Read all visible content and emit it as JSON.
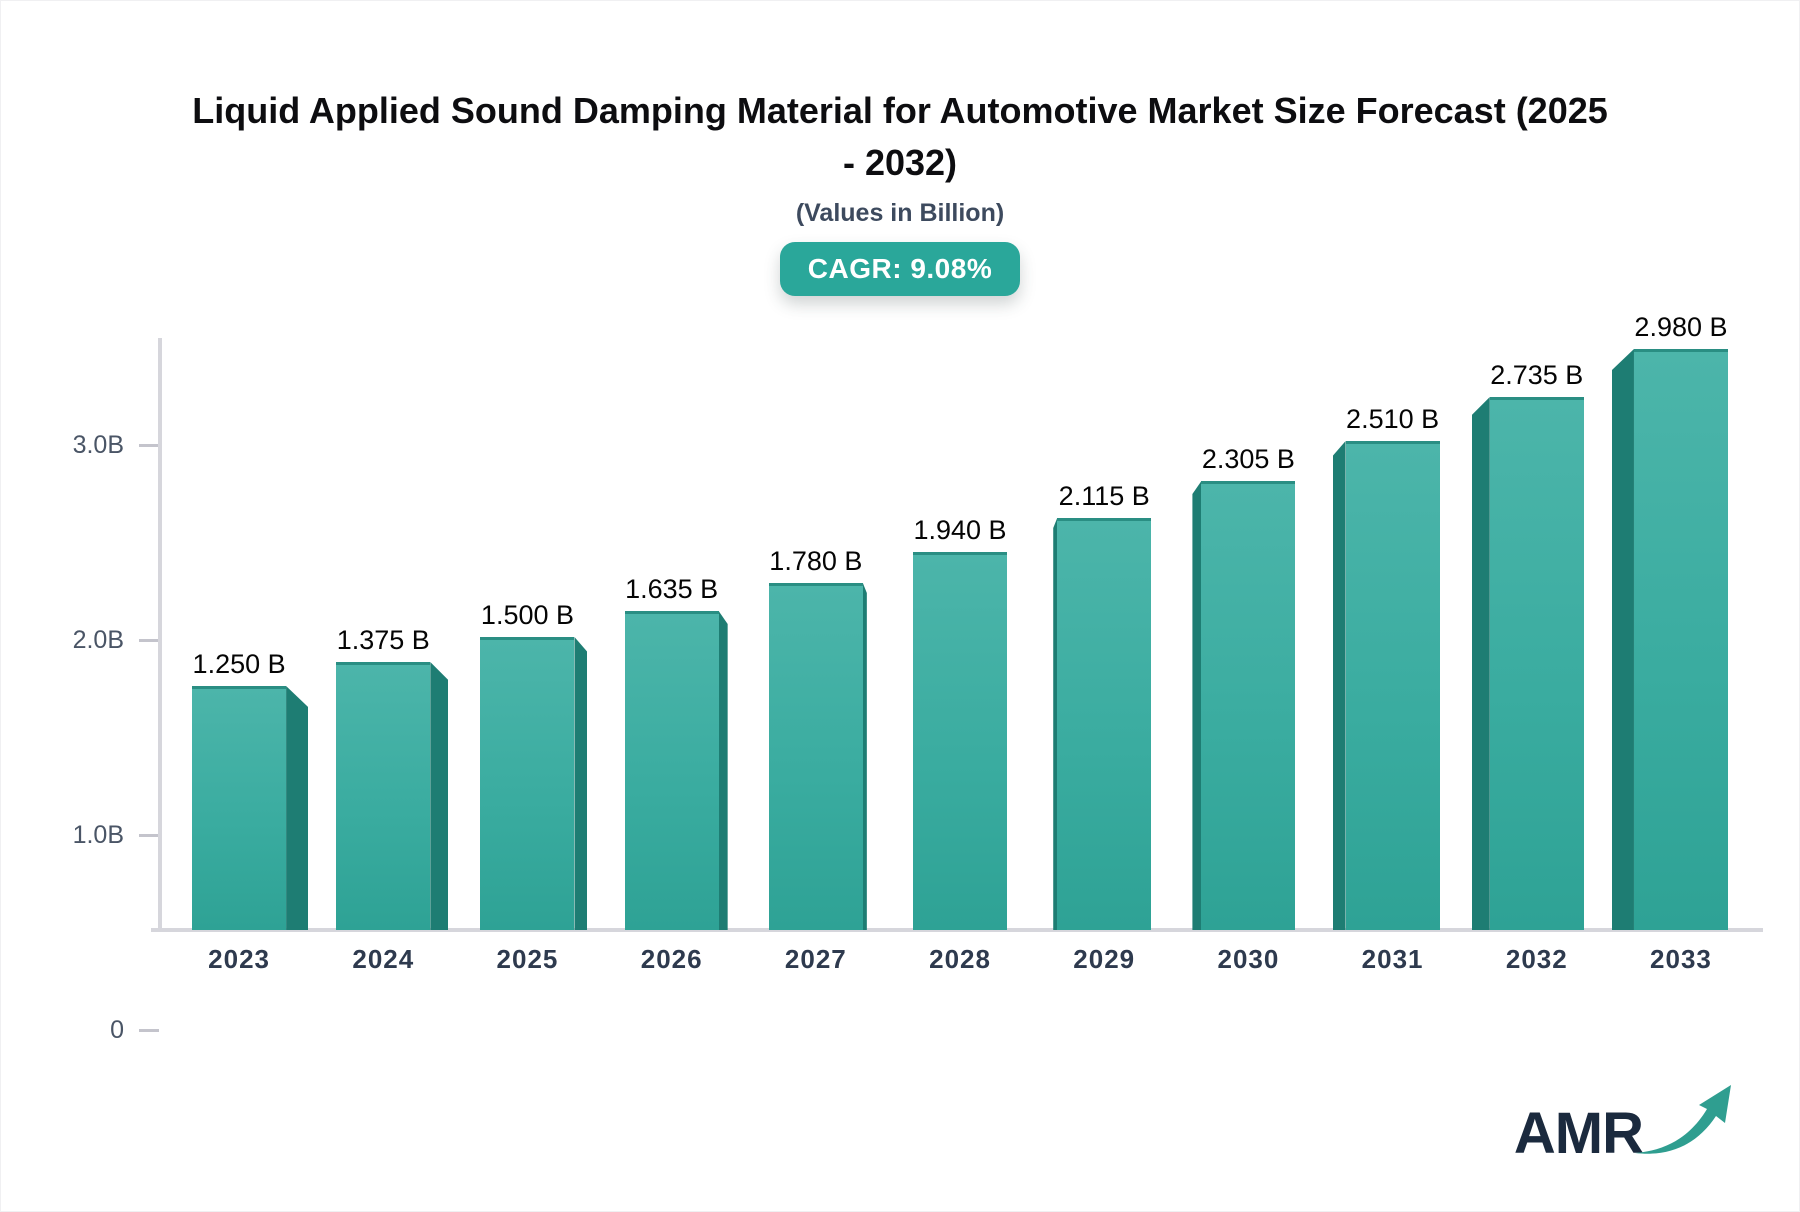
{
  "header": {
    "title_line1": "Liquid Applied Sound Damping Material for Automotive Market Size Forecast (2025",
    "title_line2": "- 2032)",
    "subtitle": "(Values in Billion)",
    "cagr_label": "CAGR: 9.08%"
  },
  "chart_data": {
    "type": "bar",
    "title": "Liquid Applied Sound Damping Material for Automotive Market Size Forecast (2025 - 2032)",
    "subtitle": "(Values in Billion)",
    "cagr_pct": 9.08,
    "categories": [
      "2023",
      "2024",
      "2025",
      "2026",
      "2027",
      "2028",
      "2029",
      "2030",
      "2031",
      "2032",
      "2033"
    ],
    "values": [
      1.25,
      1.375,
      1.5,
      1.635,
      1.78,
      1.94,
      2.115,
      2.305,
      2.51,
      2.735,
      2.98
    ],
    "value_labels": [
      "1.250 B",
      "1.375 B",
      "1.500 B",
      "1.635 B",
      "1.780 B",
      "1.940 B",
      "2.115 B",
      "2.305 B",
      "2.510 B",
      "2.735 B",
      "2.980 B"
    ],
    "xlabel": "",
    "ylabel": "",
    "ylim": [
      0,
      3.0
    ],
    "yticks": [
      {
        "label": "3.0B",
        "value": 3.0
      },
      {
        "label": "2.0B",
        "value": 2.0
      },
      {
        "label": "1.0B",
        "value": 1.0
      },
      {
        "label": "0",
        "value": 0
      }
    ],
    "grid": false,
    "legend": "none",
    "bar_style": "3d-perspective-from-center"
  },
  "colors": {
    "accent_teal": "#2aa79a",
    "bar_face_top": "#4cb5aa",
    "bar_face_bottom": "#2ea295",
    "bar_side": "#1e7d73",
    "bar_top_edge": "#2a8e83",
    "axis_line": "#d6d6dc",
    "tick_dash": "#c4c4cc",
    "y_label_text": "#4a5566",
    "x_label_text": "#2e3a4e",
    "value_text": "#050505",
    "title_text": "#0d0d10",
    "subtitle_text": "#3d4a5e",
    "badge_text": "#ffffff",
    "logo_text": "#1b2a3e"
  },
  "logo": {
    "text": "AMR"
  }
}
